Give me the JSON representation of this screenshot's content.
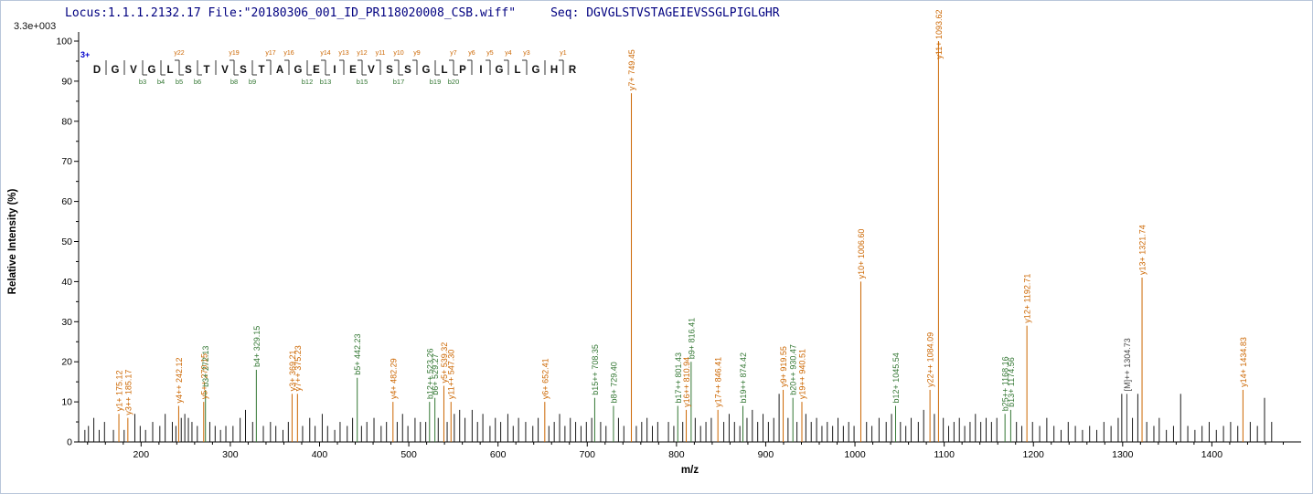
{
  "header": {
    "locus_file": "Locus:1.1.1.2132.17 File:\"20180306_001_ID_PR118020008_CSB.wiff\"",
    "seq_label": "Seq: DGVGLSTVSTAGEIEVSSGLPIGLGHR",
    "intensity_scale": "3.3e+003"
  },
  "colors": {
    "y_ion": "#cc6600",
    "b_ion": "#337733",
    "precursor": "#444444",
    "noise": "#1a1a1a",
    "axis": "#000000",
    "header_text": "#000080",
    "charge": "#0000cc"
  },
  "peptide": {
    "charge_label": "3+",
    "sequence": "DGVGLSTVSTAGEIEVSSGLPIGLGHR",
    "y_ion_marks": [
      {
        "after": 5,
        "label": "y22"
      },
      {
        "after": 8,
        "label": "y19"
      },
      {
        "after": 10,
        "label": "y17"
      },
      {
        "after": 11,
        "label": "y16"
      },
      {
        "after": 13,
        "label": "y14"
      },
      {
        "after": 14,
        "label": "y13"
      },
      {
        "after": 15,
        "label": "y12"
      },
      {
        "after": 16,
        "label": "y11"
      },
      {
        "after": 17,
        "label": "y10"
      },
      {
        "after": 18,
        "label": "y9"
      },
      {
        "after": 20,
        "label": "y7"
      },
      {
        "after": 21,
        "label": "y6"
      },
      {
        "after": 22,
        "label": "y5"
      },
      {
        "after": 23,
        "label": "y4"
      },
      {
        "after": 24,
        "label": "y3"
      },
      {
        "after": 26,
        "label": "y1"
      }
    ],
    "b_ion_marks": [
      {
        "after": 3,
        "label": "b3"
      },
      {
        "after": 4,
        "label": "b4"
      },
      {
        "after": 5,
        "label": "b5"
      },
      {
        "after": 6,
        "label": "b6"
      },
      {
        "after": 8,
        "label": "b8"
      },
      {
        "after": 9,
        "label": "b9"
      },
      {
        "after": 12,
        "label": "b12"
      },
      {
        "after": 13,
        "label": "b13"
      },
      {
        "after": 15,
        "label": "b15"
      },
      {
        "after": 17,
        "label": "b17"
      },
      {
        "after": 19,
        "label": "b19"
      },
      {
        "after": 20,
        "label": "b20"
      }
    ]
  },
  "chart_data": {
    "type": "bar",
    "chart_kind": "ms2-fragmentation-spectrum",
    "title": "",
    "xlabel": "m/z",
    "ylabel": "Relative Intensity (%)",
    "xlim": [
      130,
      1500
    ],
    "ylim": [
      0,
      100
    ],
    "x_major_ticks": [
      200,
      300,
      400,
      500,
      600,
      700,
      800,
      900,
      1000,
      1100,
      1200,
      1300,
      1400
    ],
    "y_major_ticks": [
      0,
      10,
      20,
      30,
      40,
      50,
      60,
      70,
      80,
      90,
      100
    ],
    "labeled_peaks": [
      {
        "label": "y1+ 175.12",
        "mz": 175.12,
        "intensity": 7,
        "ion": "y"
      },
      {
        "label": "y3++ 185.17",
        "mz": 185.17,
        "intensity": 6,
        "ion": "y"
      },
      {
        "label": "y4++ 242.12",
        "mz": 242.12,
        "intensity": 9,
        "ion": "y"
      },
      {
        "label": "y5++ 270.15",
        "mz": 270.15,
        "intensity": 10,
        "ion": "y"
      },
      {
        "label": "b3+ 272.13",
        "mz": 272.13,
        "intensity": 13,
        "ion": "b"
      },
      {
        "label": "b4+ 329.15",
        "mz": 329.15,
        "intensity": 18,
        "ion": "b"
      },
      {
        "label": "y3+ 369.21",
        "mz": 369.21,
        "intensity": 12,
        "ion": "y"
      },
      {
        "label": "y7++ 375.23",
        "mz": 375.23,
        "intensity": 12,
        "ion": "y"
      },
      {
        "label": "b5+ 442.23",
        "mz": 442.23,
        "intensity": 16,
        "ion": "b"
      },
      {
        "label": "y4+ 482.29",
        "mz": 482.29,
        "intensity": 10,
        "ion": "y"
      },
      {
        "label": "b12++ 523.26",
        "mz": 523.26,
        "intensity": 10,
        "ion": "b"
      },
      {
        "label": "b6+ 529.27",
        "mz": 529.27,
        "intensity": 11,
        "ion": "b"
      },
      {
        "label": "y5+ 539.32",
        "mz": 539.32,
        "intensity": 14,
        "ion": "y"
      },
      {
        "label": "y11++ 547.30",
        "mz": 547.3,
        "intensity": 10,
        "ion": "y"
      },
      {
        "label": "y6+ 652.41",
        "mz": 652.41,
        "intensity": 10,
        "ion": "y"
      },
      {
        "label": "b15++ 708.35",
        "mz": 708.35,
        "intensity": 11,
        "ion": "b"
      },
      {
        "label": "b8+ 729.40",
        "mz": 729.4,
        "intensity": 9,
        "ion": "b"
      },
      {
        "label": "y7+ 749.45",
        "mz": 749.45,
        "intensity": 87,
        "ion": "y"
      },
      {
        "label": "b17++ 801.43",
        "mz": 801.43,
        "intensity": 9,
        "ion": "b"
      },
      {
        "label": "y16++ 810.94",
        "mz": 810.94,
        "intensity": 8,
        "ion": "y"
      },
      {
        "label": "b9+ 816.41",
        "mz": 816.41,
        "intensity": 20,
        "ion": "b"
      },
      {
        "label": "y17++ 846.41",
        "mz": 846.41,
        "intensity": 8,
        "ion": "y"
      },
      {
        "label": "b19++ 874.42",
        "mz": 874.42,
        "intensity": 9,
        "ion": "b"
      },
      {
        "label": "y9+ 919.55",
        "mz": 919.55,
        "intensity": 13,
        "ion": "y"
      },
      {
        "label": "b20++ 930.47",
        "mz": 930.47,
        "intensity": 11,
        "ion": "b"
      },
      {
        "label": "y19++ 940.51",
        "mz": 940.51,
        "intensity": 10,
        "ion": "y"
      },
      {
        "label": "y10+ 1006.60",
        "mz": 1006.6,
        "intensity": 40,
        "ion": "y"
      },
      {
        "label": "b12+ 1045.54",
        "mz": 1045.54,
        "intensity": 9,
        "ion": "b"
      },
      {
        "label": "y22++ 1084.09",
        "mz": 1084.09,
        "intensity": 13,
        "ion": "y"
      },
      {
        "label": "y11+ 1093.62",
        "mz": 1093.62,
        "intensity": 100,
        "ion": "y"
      },
      {
        "label": "b25++ 1168.16",
        "mz": 1168.16,
        "intensity": 7,
        "ion": "b"
      },
      {
        "label": "b13+ 1174.56",
        "mz": 1174.56,
        "intensity": 8,
        "ion": "b"
      },
      {
        "label": "y12+ 1192.71",
        "mz": 1192.71,
        "intensity": 29,
        "ion": "y"
      },
      {
        "label": "[M]++ 1304.73",
        "mz": 1304.73,
        "intensity": 12,
        "ion": "M"
      },
      {
        "label": "y13+ 1321.74",
        "mz": 1321.74,
        "intensity": 41,
        "ion": "y"
      },
      {
        "label": "y14+ 1434.83",
        "mz": 1434.83,
        "intensity": 13,
        "ion": "y"
      }
    ],
    "unlabeled_peaks": [
      [
        137,
        3
      ],
      [
        141,
        4
      ],
      [
        147,
        6
      ],
      [
        153,
        3
      ],
      [
        159,
        5
      ],
      [
        169,
        3
      ],
      [
        181,
        3
      ],
      [
        193,
        7
      ],
      [
        199,
        4
      ],
      [
        205,
        3
      ],
      [
        213,
        5
      ],
      [
        221,
        4
      ],
      [
        227,
        7
      ],
      [
        235,
        5
      ],
      [
        239,
        4
      ],
      [
        245,
        6
      ],
      [
        249,
        7
      ],
      [
        253,
        6
      ],
      [
        257,
        5
      ],
      [
        263,
        4
      ],
      [
        277,
        5
      ],
      [
        283,
        4
      ],
      [
        289,
        3
      ],
      [
        295,
        4
      ],
      [
        303,
        4
      ],
      [
        311,
        6
      ],
      [
        317,
        8
      ],
      [
        325,
        5
      ],
      [
        337,
        4
      ],
      [
        345,
        5
      ],
      [
        351,
        4
      ],
      [
        359,
        3
      ],
      [
        365,
        5
      ],
      [
        381,
        4
      ],
      [
        389,
        6
      ],
      [
        395,
        4
      ],
      [
        403,
        7
      ],
      [
        409,
        4
      ],
      [
        417,
        3
      ],
      [
        423,
        5
      ],
      [
        431,
        4
      ],
      [
        437,
        6
      ],
      [
        447,
        4
      ],
      [
        453,
        5
      ],
      [
        461,
        6
      ],
      [
        469,
        4
      ],
      [
        475,
        5
      ],
      [
        487,
        5
      ],
      [
        493,
        7
      ],
      [
        499,
        4
      ],
      [
        507,
        6
      ],
      [
        513,
        5
      ],
      [
        519,
        5
      ],
      [
        533,
        6
      ],
      [
        543,
        5
      ],
      [
        551,
        7
      ],
      [
        557,
        8
      ],
      [
        563,
        6
      ],
      [
        571,
        8
      ],
      [
        577,
        5
      ],
      [
        583,
        7
      ],
      [
        591,
        4
      ],
      [
        597,
        6
      ],
      [
        603,
        5
      ],
      [
        611,
        7
      ],
      [
        617,
        4
      ],
      [
        623,
        6
      ],
      [
        631,
        5
      ],
      [
        639,
        4
      ],
      [
        645,
        6
      ],
      [
        657,
        4
      ],
      [
        663,
        5
      ],
      [
        669,
        7
      ],
      [
        675,
        4
      ],
      [
        681,
        6
      ],
      [
        687,
        5
      ],
      [
        693,
        4
      ],
      [
        699,
        5
      ],
      [
        705,
        6
      ],
      [
        715,
        5
      ],
      [
        721,
        4
      ],
      [
        735,
        6
      ],
      [
        741,
        4
      ],
      [
        755,
        4
      ],
      [
        761,
        5
      ],
      [
        767,
        6
      ],
      [
        773,
        4
      ],
      [
        779,
        5
      ],
      [
        791,
        5
      ],
      [
        797,
        4
      ],
      [
        807,
        5
      ],
      [
        821,
        6
      ],
      [
        827,
        4
      ],
      [
        833,
        5
      ],
      [
        839,
        6
      ],
      [
        853,
        5
      ],
      [
        859,
        7
      ],
      [
        865,
        5
      ],
      [
        871,
        4
      ],
      [
        879,
        6
      ],
      [
        885,
        8
      ],
      [
        891,
        5
      ],
      [
        897,
        7
      ],
      [
        903,
        5
      ],
      [
        909,
        6
      ],
      [
        915,
        12
      ],
      [
        925,
        6
      ],
      [
        935,
        5
      ],
      [
        945,
        7
      ],
      [
        951,
        5
      ],
      [
        957,
        6
      ],
      [
        963,
        4
      ],
      [
        969,
        5
      ],
      [
        975,
        4
      ],
      [
        981,
        6
      ],
      [
        987,
        4
      ],
      [
        993,
        5
      ],
      [
        999,
        4
      ],
      [
        1013,
        5
      ],
      [
        1019,
        4
      ],
      [
        1027,
        6
      ],
      [
        1035,
        5
      ],
      [
        1041,
        7
      ],
      [
        1051,
        5
      ],
      [
        1057,
        4
      ],
      [
        1063,
        6
      ],
      [
        1071,
        5
      ],
      [
        1077,
        8
      ],
      [
        1089,
        7
      ],
      [
        1099,
        6
      ],
      [
        1105,
        4
      ],
      [
        1111,
        5
      ],
      [
        1117,
        6
      ],
      [
        1123,
        4
      ],
      [
        1129,
        5
      ],
      [
        1135,
        7
      ],
      [
        1141,
        5
      ],
      [
        1147,
        6
      ],
      [
        1153,
        5
      ],
      [
        1159,
        6
      ],
      [
        1181,
        5
      ],
      [
        1187,
        4
      ],
      [
        1199,
        5
      ],
      [
        1207,
        4
      ],
      [
        1215,
        6
      ],
      [
        1223,
        4
      ],
      [
        1231,
        3
      ],
      [
        1239,
        5
      ],
      [
        1247,
        4
      ],
      [
        1255,
        3
      ],
      [
        1263,
        4
      ],
      [
        1271,
        3
      ],
      [
        1279,
        5
      ],
      [
        1287,
        4
      ],
      [
        1295,
        6
      ],
      [
        1299,
        12
      ],
      [
        1311,
        6
      ],
      [
        1317,
        12
      ],
      [
        1327,
        5
      ],
      [
        1335,
        4
      ],
      [
        1341,
        6
      ],
      [
        1349,
        3
      ],
      [
        1357,
        4
      ],
      [
        1365,
        12
      ],
      [
        1373,
        4
      ],
      [
        1381,
        3
      ],
      [
        1389,
        4
      ],
      [
        1397,
        5
      ],
      [
        1405,
        3
      ],
      [
        1413,
        4
      ],
      [
        1421,
        5
      ],
      [
        1429,
        4
      ],
      [
        1443,
        5
      ],
      [
        1451,
        4
      ],
      [
        1459,
        11
      ],
      [
        1467,
        5
      ]
    ]
  }
}
